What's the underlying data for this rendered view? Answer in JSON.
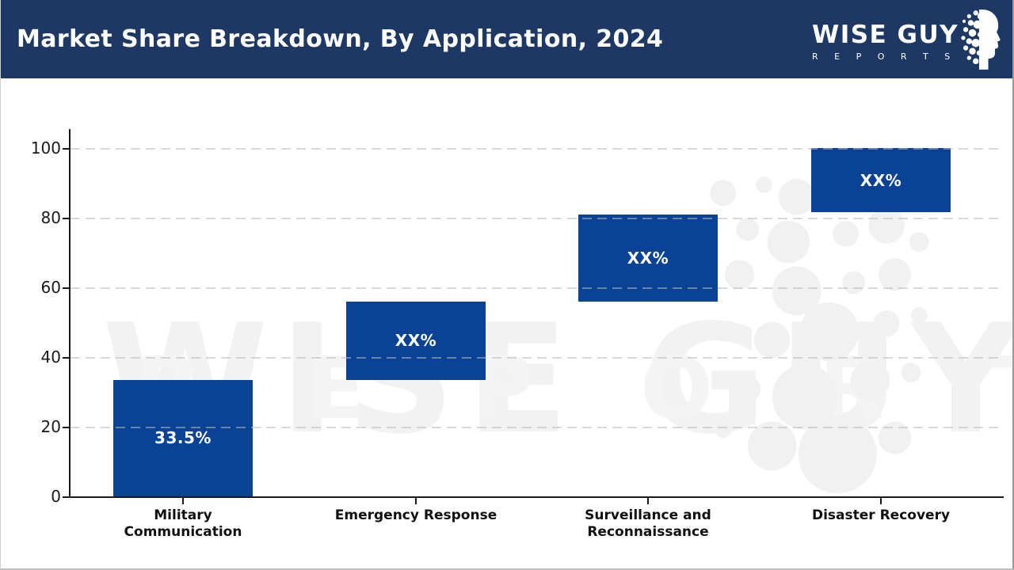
{
  "page": {
    "title": "Market Share Breakdown, By Application, 2024"
  },
  "brand": {
    "line1": "WISE GUY",
    "line2": "R E P O R T S",
    "head_icon": "dotted-face-profile"
  },
  "watermark": {
    "line1": "WISE GUY",
    "line2": "R E P O R T S",
    "head_icon": "dotted-face-profile"
  },
  "colors": {
    "header_bg": "#1e3866",
    "bar": "#0a4396",
    "title_text": "#ffffff",
    "axis": "#1a1a1a",
    "grid": "#d9d9d9",
    "watermark": "#f2f2f2"
  },
  "chart_data": {
    "type": "bar",
    "subtype": "waterfall-floating-bars",
    "title": "Market Share Breakdown, By Application, 2024",
    "xlabel": "",
    "ylabel": "",
    "ylim": [
      0,
      100
    ],
    "yticks": [
      0,
      20,
      40,
      60,
      80,
      100
    ],
    "grid": "horizontal-dashed-over-bars",
    "legend": "none",
    "bars": [
      {
        "category": "Military Communication",
        "category_lines": [
          "Military",
          "Communication"
        ],
        "label": "33.5%",
        "start": 0,
        "end": 33.5
      },
      {
        "category": "Emergency Response",
        "category_lines": [
          "Emergency Response"
        ],
        "label": "XX%",
        "start": 33.5,
        "end": 56
      },
      {
        "category": "Surveillance and Reconnaissance",
        "category_lines": [
          "Surveillance and",
          "Reconnaissance"
        ],
        "label": "XX%",
        "start": 56,
        "end": 81
      },
      {
        "category": "Disaster Recovery",
        "category_lines": [
          "Disaster Recovery"
        ],
        "label": "XX%",
        "start": 81.5,
        "end": 100
      }
    ]
  }
}
